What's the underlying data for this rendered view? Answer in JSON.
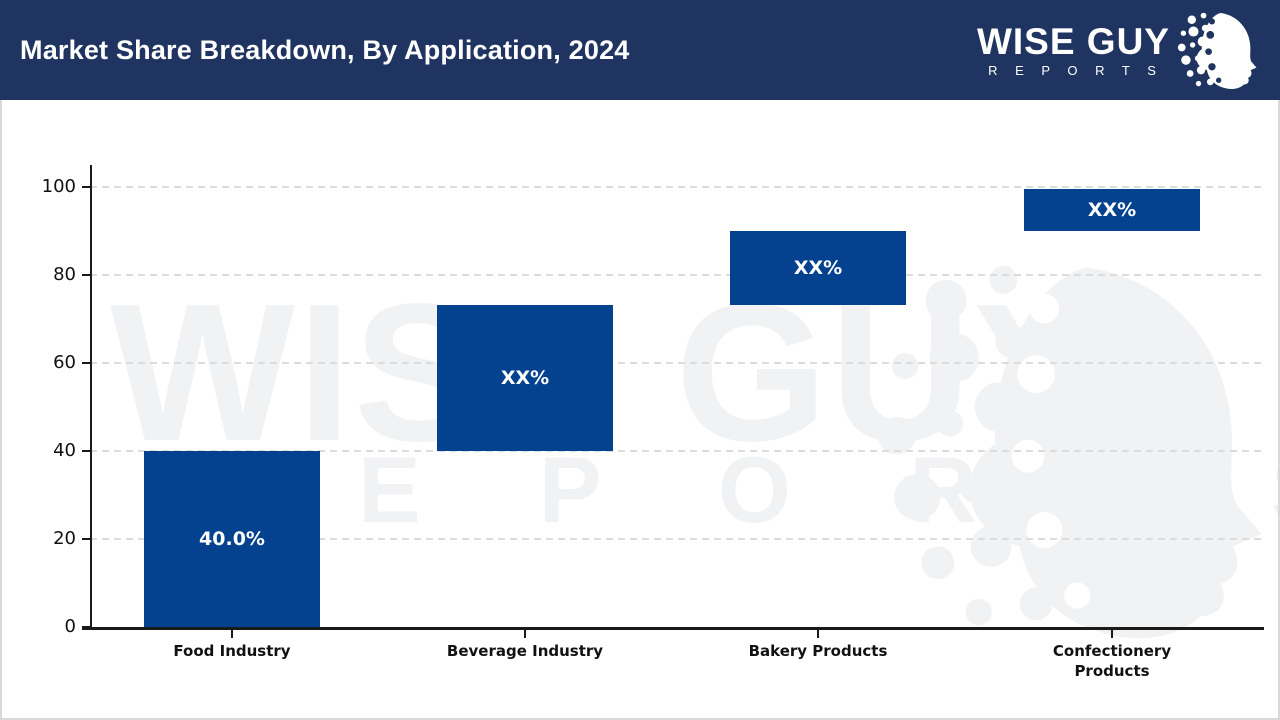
{
  "header": {
    "title": "Market Share Breakdown, By Application, 2024",
    "logo": {
      "wordmark": "WISE GUY",
      "subtext": "R E P O R T S"
    }
  },
  "watermark": {
    "line1": "WISE GUY",
    "line2": "R E P O R T S"
  },
  "chart_data": {
    "type": "bar",
    "subtype": "waterfall",
    "title": "Market Share Breakdown, By Application, 2024",
    "categories": [
      "Food Industry",
      "Beverage Industry",
      "Bakery Products",
      "Confectionery Products"
    ],
    "series": [
      {
        "name": "Market Share",
        "segments": [
          {
            "category": "Food Industry",
            "start": 0,
            "end": 40,
            "label": "40.0%"
          },
          {
            "category": "Beverage Industry",
            "start": 40,
            "end": 73.3,
            "label": "XX%"
          },
          {
            "category": "Bakery Products",
            "start": 73.3,
            "end": 90,
            "label": "XX%"
          },
          {
            "category": "Confectionery Products",
            "start": 90,
            "end": 99.5,
            "label": "XX%"
          }
        ]
      }
    ],
    "xlabel": "",
    "ylabel": "",
    "yticks": [
      0,
      20,
      40,
      60,
      80,
      100
    ],
    "ylim": [
      0,
      105
    ],
    "grid": true,
    "grid_style": "dashed",
    "legend": "none"
  },
  "colors": {
    "header_bg": "#1f3461",
    "bar": "#04418f",
    "bar_label": "#ffffff",
    "axis": "#1a1a1a",
    "grid": "#dcdcdc",
    "watermark": "#f1f2f4",
    "border": "#d9d9d9"
  }
}
